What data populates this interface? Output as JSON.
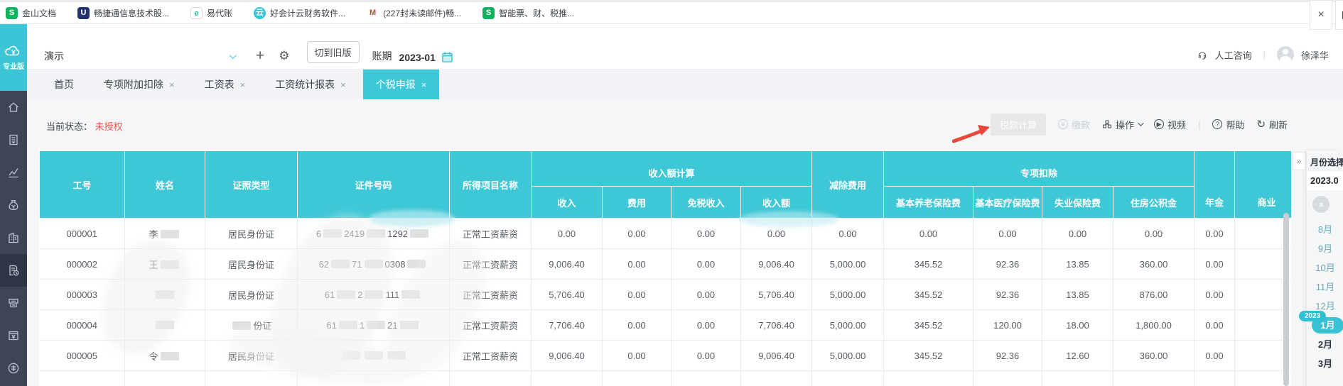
{
  "browser": {
    "bookmarks": [
      {
        "label": "金山文档",
        "glyph": "S",
        "bg": "#10b45f",
        "fg": "#fff"
      },
      {
        "label": "畅捷通信息技术股...",
        "glyph": "U",
        "bg": "#20336b",
        "fg": "#fff"
      },
      {
        "label": "易代账",
        "glyph": "e",
        "bg": "#ffffff",
        "fg": "#2dbd9e",
        "border": true
      },
      {
        "label": "好会计云财务软件...",
        "glyph": "云",
        "bg": "#35c3d7",
        "fg": "#fff",
        "round": true
      },
      {
        "label": "(227封未读邮件)畅...",
        "glyph": "M",
        "bg": "#ffffff",
        "fg": "#e5392c"
      },
      {
        "label": "智能票、财、税推...",
        "glyph": "S",
        "bg": "#10b45f",
        "fg": "#fff"
      }
    ]
  },
  "header": {
    "company": "演示",
    "plus": "+",
    "gear": "⚙",
    "switch_old": "切到旧版",
    "period_label": "账期",
    "period_value": "2023-01",
    "support": "人工咨询",
    "user": "徐泽华"
  },
  "sidebar": {
    "brand": "专业版",
    "items": [
      {
        "icon": "home",
        "name": "home"
      },
      {
        "icon": "invoice",
        "name": "invoice"
      },
      {
        "icon": "chart",
        "name": "reports"
      },
      {
        "icon": "fund",
        "name": "funds"
      },
      {
        "icon": "org",
        "name": "company"
      },
      {
        "icon": "payroll",
        "name": "payroll",
        "active": true
      },
      {
        "icon": "atm",
        "name": "banking"
      },
      {
        "icon": "window",
        "name": "checkout"
      },
      {
        "icon": "tax",
        "name": "tax"
      }
    ]
  },
  "tabs": [
    {
      "label": "首页",
      "closable": false,
      "active": false
    },
    {
      "label": "专项附加扣除",
      "closable": true,
      "active": false
    },
    {
      "label": "工资表",
      "closable": true,
      "active": false
    },
    {
      "label": "工资统计报表",
      "closable": true,
      "active": false
    },
    {
      "label": "个税申报",
      "closable": true,
      "active": true
    }
  ],
  "tabbar": {
    "close_all": "×"
  },
  "statusbar": {
    "label": "当前状态：",
    "value": "未授权"
  },
  "toolbar": {
    "tax_calc": "税款计算",
    "pay": "缴款",
    "action": "操作",
    "video": "视频",
    "help": "帮助",
    "refresh": "刷新",
    "refresh_glyph": "↻"
  },
  "table": {
    "header": {
      "span_cols": [
        "工号",
        "姓名",
        "证照类型",
        "证件号码",
        "所得项目名称"
      ],
      "income_group": {
        "label": "收入额计算",
        "cols": [
          "收入",
          "费用",
          "免税收入",
          "收入额"
        ]
      },
      "deduction": "减除费用",
      "special_group": {
        "label": "专项扣除",
        "cols": [
          "基本养老保险费",
          "基本医疗保险费",
          "失业保险费",
          "住房公积金"
        ]
      },
      "annuity": "年金",
      "commercial": "商业"
    },
    "rows": [
      [
        "000001",
        {
          "t": "李",
          "post": 1
        },
        "居民身份证",
        {
          "frags": [
            "6",
            "2419",
            "1292"
          ]
        },
        "正常工资薪资",
        "0.00",
        "0.00",
        "0.00",
        "0.00",
        "0.00",
        "0.00",
        "0.00",
        "0.00",
        "0.00",
        "0.00",
        ""
      ],
      [
        "000002",
        {
          "t": "王",
          "post": 1
        },
        "居民身份证",
        {
          "frags": [
            "62",
            "71",
            "0308"
          ]
        },
        "正常工资薪资",
        "9,006.40",
        "0.00",
        "0.00",
        "9,006.40",
        "5,000.00",
        "345.52",
        "92.36",
        "13.85",
        "360.00",
        "0.00",
        ""
      ],
      [
        "000003",
        {
          "t": "",
          "post": 1
        },
        "居民身份证",
        {
          "frags": [
            "61",
            "2",
            "111"
          ]
        },
        "正常工资薪资",
        "5,706.40",
        "0.00",
        "0.00",
        "5,706.40",
        "5,000.00",
        "345.52",
        "92.36",
        "13.85",
        "876.00",
        "0.00",
        ""
      ],
      [
        "000004",
        {
          "t": "",
          "post": 1
        },
        {
          "t": "份证",
          "pre": 1
        },
        {
          "frags": [
            "61",
            "1",
            "21"
          ]
        },
        "正常工资薪资",
        "7,706.40",
        "0.00",
        "0.00",
        "7,706.40",
        "5,000.00",
        "345.52",
        "120.00",
        "18.00",
        "1,800.00",
        "0.00",
        ""
      ],
      [
        "000005",
        {
          "t": "令",
          "post": 1
        },
        "居民身份证",
        {
          "frags": [
            "",
            "",
            ""
          ]
        },
        "正常工资薪资",
        "9,006.40",
        "0.00",
        "0.00",
        "9,006.40",
        "5,000.00",
        "345.52",
        "92.36",
        "12.60",
        "360.00",
        "0.00",
        ""
      ]
    ]
  },
  "month_panel": {
    "collapse": "»",
    "title": "月份选择",
    "current": "2023.0",
    "year_badge": "2023",
    "months": [
      {
        "label": "8月",
        "state": "past"
      },
      {
        "label": "9月",
        "state": "past"
      },
      {
        "label": "10月",
        "state": "past"
      },
      {
        "label": "11月",
        "state": "past"
      },
      {
        "label": "12月",
        "state": "past"
      },
      {
        "label": "1月",
        "state": "active"
      },
      {
        "label": "2月",
        "state": "future"
      },
      {
        "label": "3月",
        "state": "future"
      }
    ]
  }
}
